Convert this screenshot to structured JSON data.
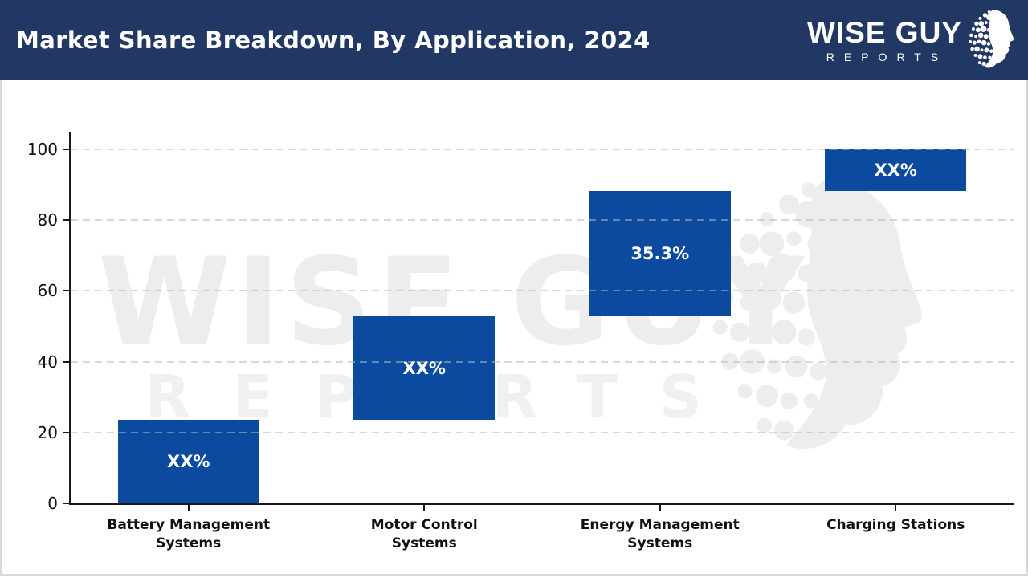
{
  "header": {
    "title": "Market Share Breakdown, By Application, 2024",
    "logo": {
      "wordmark": "WISE GUY",
      "sub": "REPORTS"
    }
  },
  "watermark": {
    "wordmark": "WISE GUY",
    "sub": "REPORTS"
  },
  "colors": {
    "header_bg": "#213865",
    "bar": "#0b4a9e",
    "bar_label": "#ffffff",
    "grid": "rgba(185,185,185,0.55)",
    "axis": "#1a1a1a",
    "card_border": "#d8d8d8",
    "watermark": "#ededed"
  },
  "chart_data": {
    "type": "bar",
    "variant": "waterfall",
    "title": "Market Share Breakdown, By Application, 2024",
    "categories": [
      "Battery Management Systems",
      "Motor Control Systems",
      "Energy Management Systems",
      "Charging Stations"
    ],
    "category_lines": [
      [
        "Battery Management",
        "Systems"
      ],
      [
        "Motor Control",
        "Systems"
      ],
      [
        "Energy Management",
        "Systems"
      ],
      [
        "Charging Stations"
      ]
    ],
    "segments": [
      {
        "category": "Battery Management Systems",
        "start": 0,
        "end": 23.6,
        "label": "XX%"
      },
      {
        "category": "Motor Control Systems",
        "start": 23.6,
        "end": 52.8,
        "label": "XX%"
      },
      {
        "category": "Energy Management Systems",
        "start": 52.8,
        "end": 88.1,
        "label": "35.3%"
      },
      {
        "category": "Charging Stations",
        "start": 88.1,
        "end": 100,
        "label": "XX%"
      }
    ],
    "y_ticks": [
      0,
      20,
      40,
      60,
      80,
      100
    ],
    "ylim": [
      0,
      105
    ],
    "xlabel": "",
    "ylabel": "",
    "grid": "horizontal-dashed",
    "legend": "none"
  }
}
